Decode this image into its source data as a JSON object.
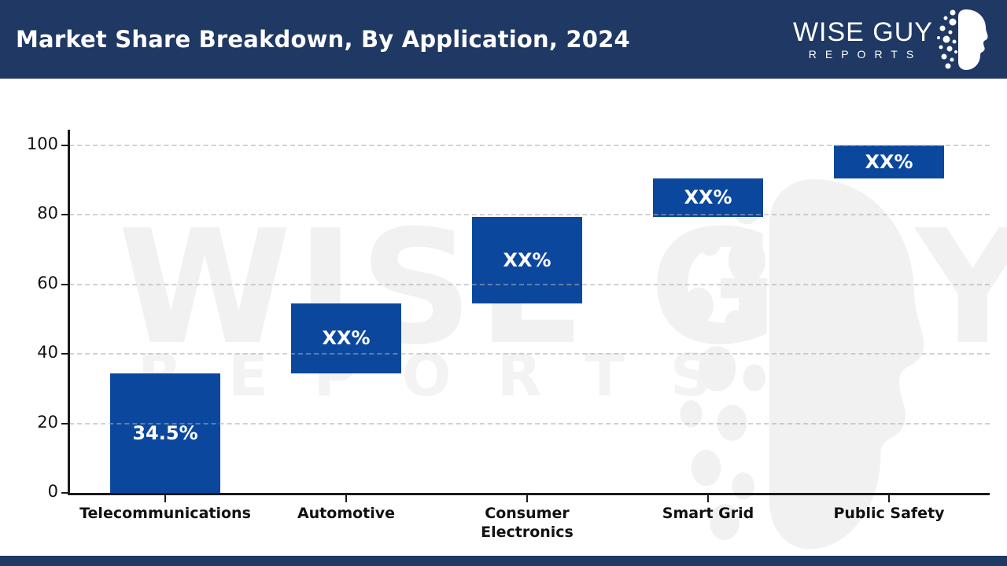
{
  "header": {
    "title": "Market Share Breakdown, By Application, 2024",
    "logo": {
      "line1": "WISE GUY",
      "line2": "REPORTS",
      "icon": "face-dots-icon"
    }
  },
  "watermark": {
    "line1": "WISE GUY",
    "line2": "REPORTS"
  },
  "colors": {
    "header_navy": "#1f3864",
    "footer_navy": "#1f3864",
    "bar_blue": "#0c479e",
    "axis_black": "#1a1a1a",
    "gridline_gray": "#d9d9d9",
    "bar_label_white": "#ffffff",
    "watermark_gray": "#f1f1f1"
  },
  "chart_data": {
    "type": "bar",
    "subtype": "waterfall",
    "title": "Market Share Breakdown, By Application, 2024",
    "categories": [
      "Telecommunications",
      "Automotive",
      "Consumer Electronics",
      "Smart Grid",
      "Public Safety"
    ],
    "category_display_lines": [
      [
        "Telecommunications"
      ],
      [
        "Automotive"
      ],
      [
        "Consumer",
        "Electronics"
      ],
      [
        "Smart Grid"
      ],
      [
        "Public Safety"
      ]
    ],
    "segments": [
      {
        "category": "Telecommunications",
        "start": 0,
        "end": 34.5,
        "label": "34.5%"
      },
      {
        "category": "Automotive",
        "start": 34.5,
        "end": 54.5,
        "label": "XX%"
      },
      {
        "category": "Consumer Electronics",
        "start": 54.5,
        "end": 79.5,
        "label": "XX%"
      },
      {
        "category": "Smart Grid",
        "start": 79.5,
        "end": 90.5,
        "label": "XX%"
      },
      {
        "category": "Public Safety",
        "start": 90.5,
        "end": 100,
        "label": "XX%"
      }
    ],
    "yticks": [
      0,
      20,
      40,
      60,
      80,
      100
    ],
    "ylim": [
      0,
      104.5
    ],
    "xlabel": "",
    "ylabel": "",
    "legend": "none",
    "grid": {
      "horizontal": true,
      "style": "dashed",
      "over_bars": true
    }
  }
}
